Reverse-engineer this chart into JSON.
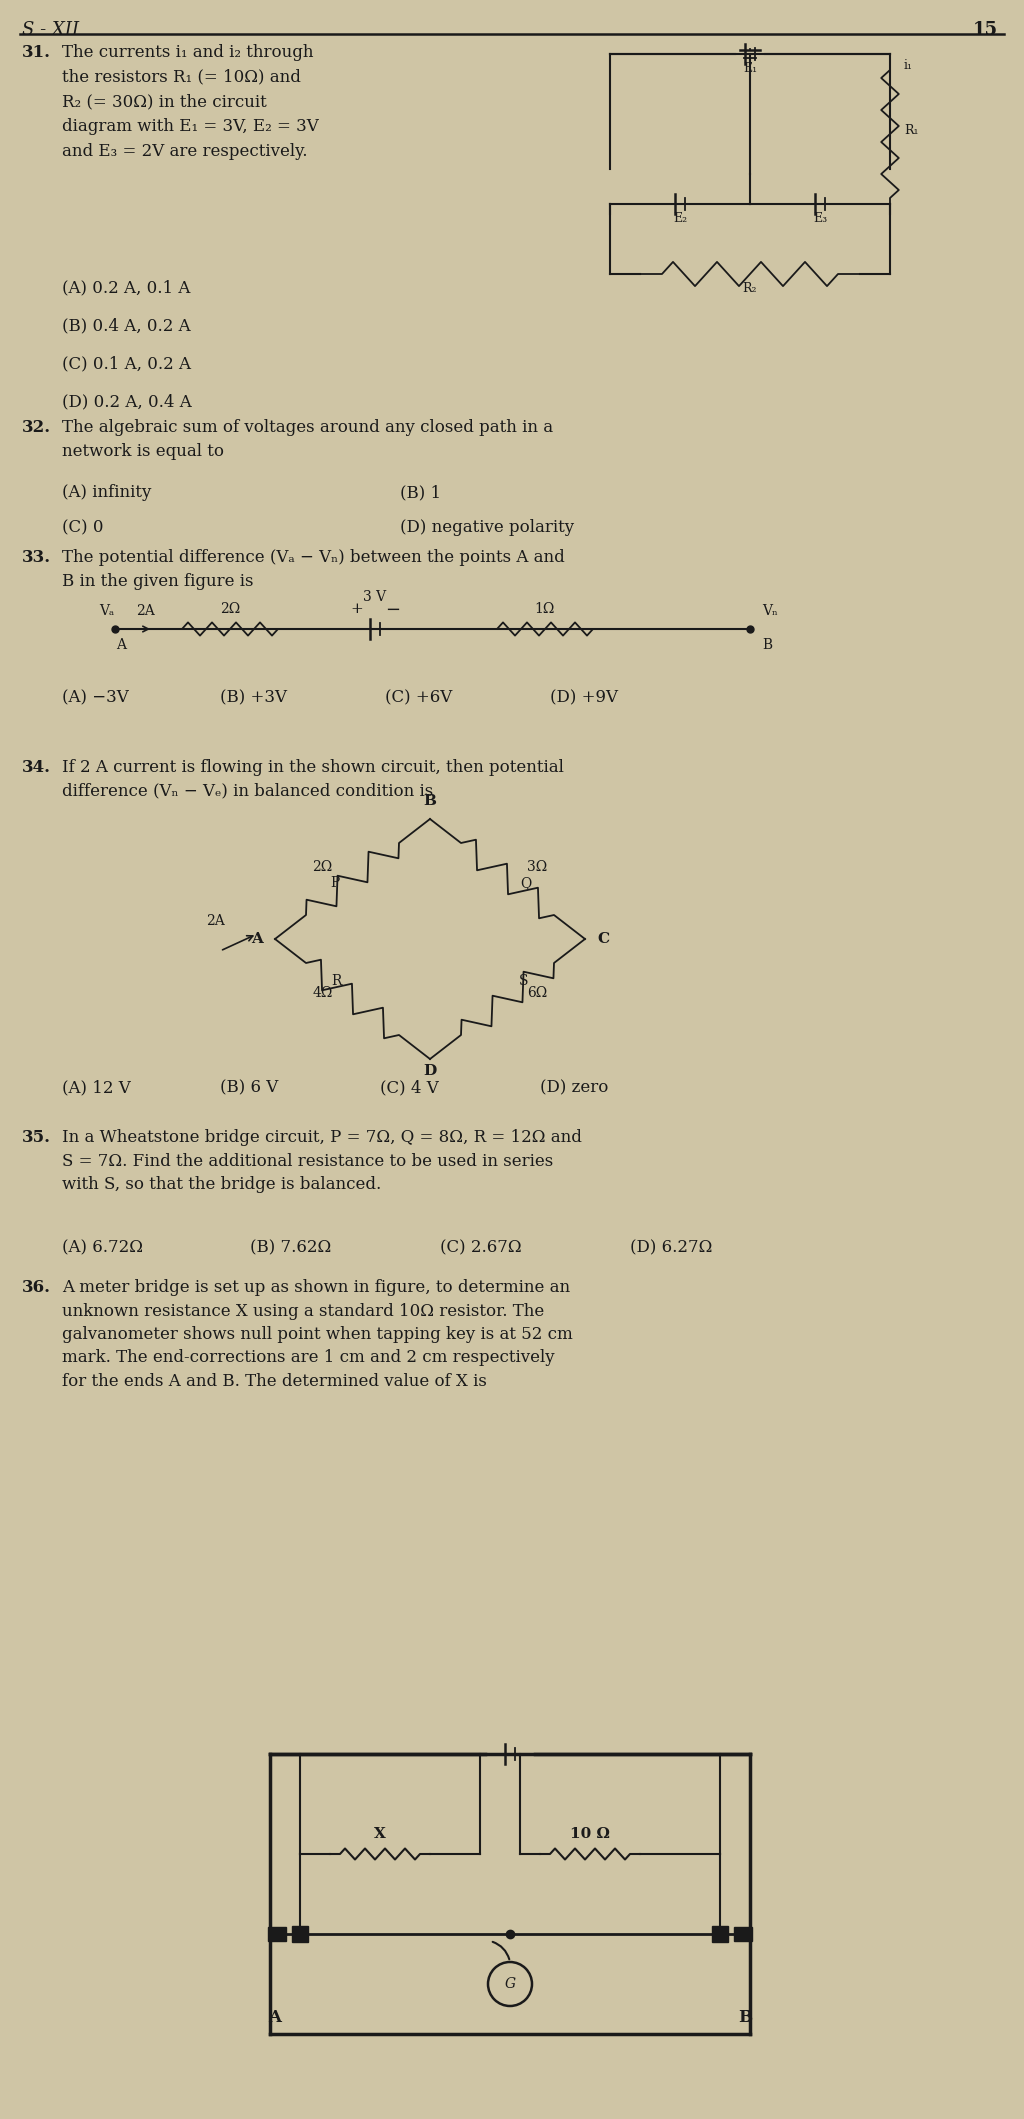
{
  "page_label": "S - XII",
  "page_number": "15",
  "bg_color": "#cfc5a5",
  "text_color": "#1a1a1a",
  "questions": [
    {
      "num": "31.",
      "text": "The currents i₁ and i₂ through\nthe resistors R₁ (= 10Ω) and\nR₂ (= 30Ω) in the circuit\ndiagram with E₁ = 3V, E₂ = 3V\nand E₃ = 2V are respectively.",
      "options": [
        "(A) 0.2 A, 0.1 A",
        "(B) 0.4 A, 0.2 A",
        "(C) 0.1 A, 0.2 A",
        "(D) 0.2 A, 0.4 A"
      ]
    },
    {
      "num": "32.",
      "text": "The algebraic sum of voltages around any closed path in a\nnetwork is equal to",
      "options_2col": [
        [
          "(A) infinity",
          "(B) 1"
        ],
        [
          "(C) 0",
          "(D) negative polarity"
        ]
      ]
    },
    {
      "num": "33.",
      "text": "The potential difference (Vₐ − Vₙ) between the points A and\nB in the given figure is",
      "options_inline": [
        "(A) −3V",
        "(B) +3V",
        "(C) +6V",
        "(D) +9V"
      ]
    },
    {
      "num": "34.",
      "text": "If 2 A current is flowing in the shown circuit, then potential\ndifference (Vₙ − Vₑ) in balanced condition is",
      "options_inline": [
        "(A) 12 V",
        "(B) 6 V",
        "(C) 4 V",
        "(D) zero"
      ]
    },
    {
      "num": "35.",
      "text": "In a Wheatstone bridge circuit, P = 7Ω, Q = 8Ω, R = 12Ω and\nS = 7Ω. Find the additional resistance to be used in series\nwith S, so that the bridge is balanced.",
      "options_inline": [
        "(A) 6.72Ω",
        "(B) 7.62Ω",
        "(C) 2.67Ω",
        "(D) 6.27Ω"
      ]
    },
    {
      "num": "36.",
      "text": "A meter bridge is set up as shown in figure, to determine an\nunknown resistance X using a standard 10Ω resistor. The\ngalvanometer shows null point when tapping key is at 52 cm\nmark. The end-corrections are 1 cm and 2 cm respectively\nfor the ends A and B. The determined value of X is"
    }
  ]
}
